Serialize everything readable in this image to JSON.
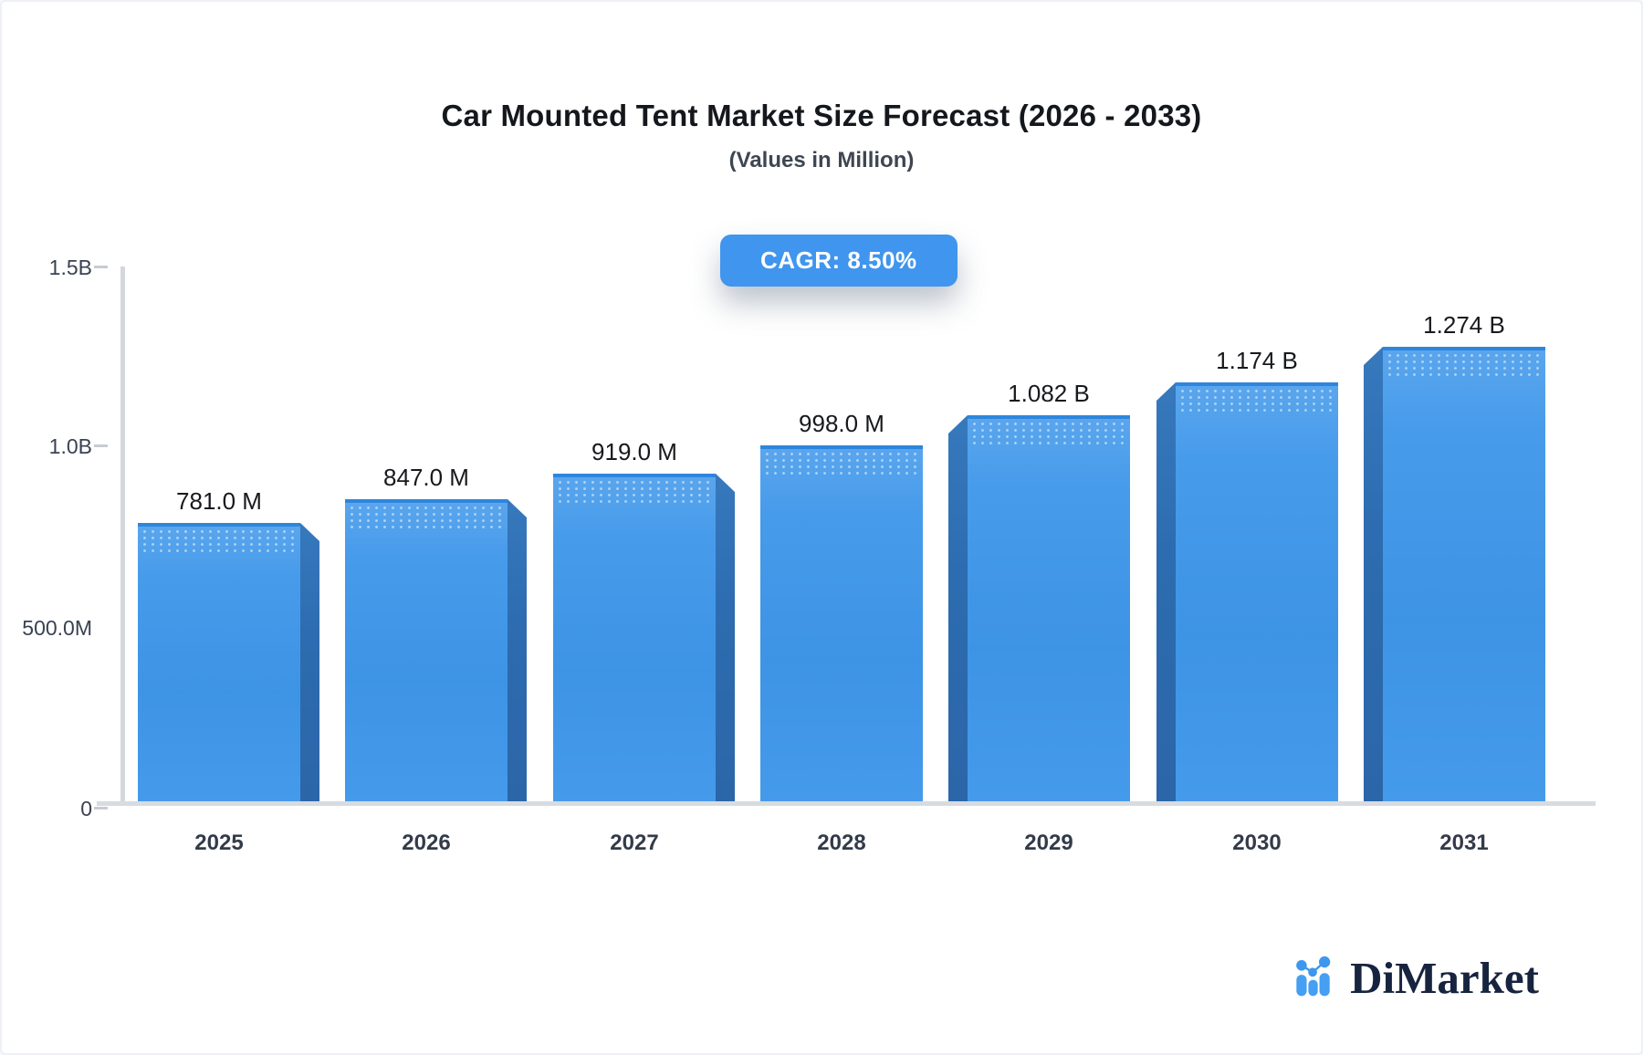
{
  "header": {
    "title": "Car Mounted Tent Market Size Forecast (2026 - 2033)",
    "subtitle": "(Values in Million)",
    "cagr_label": "CAGR: 8.50%"
  },
  "chart_data": {
    "type": "bar",
    "title": "Car Mounted Tent Market Size Forecast (2026 - 2033)",
    "subtitle": "(Values in Million)",
    "cagr_percent": "8.50%",
    "categories": [
      "2025",
      "2026",
      "2027",
      "2028",
      "2029",
      "2030",
      "2031"
    ],
    "values": [
      781,
      847,
      919,
      998,
      1082,
      1174,
      1274
    ],
    "value_unit": "USD Million",
    "value_labels": [
      "781.0 M",
      "847.0 M",
      "919.0 M",
      "998.0 M",
      "1.082 B",
      "1.174 B",
      "1.274 B"
    ],
    "xlabel": "",
    "ylabel": "",
    "y_axis_ticks": [
      "1.5B",
      "1.0B",
      "500.0M",
      "0"
    ],
    "y_axis_tick_values_million": [
      1500,
      1000,
      500,
      0
    ],
    "ylim_million": [
      0,
      1500
    ],
    "grid": false,
    "legend": false,
    "bar_color": "#3f97ea",
    "bar_side_color": "#2d6cb0",
    "accent_color": "#4095ee"
  },
  "footer": {
    "brand_text": "DiMarket",
    "brand_icon_color": "#3e97ee",
    "brand_text_color": "#17243f"
  }
}
